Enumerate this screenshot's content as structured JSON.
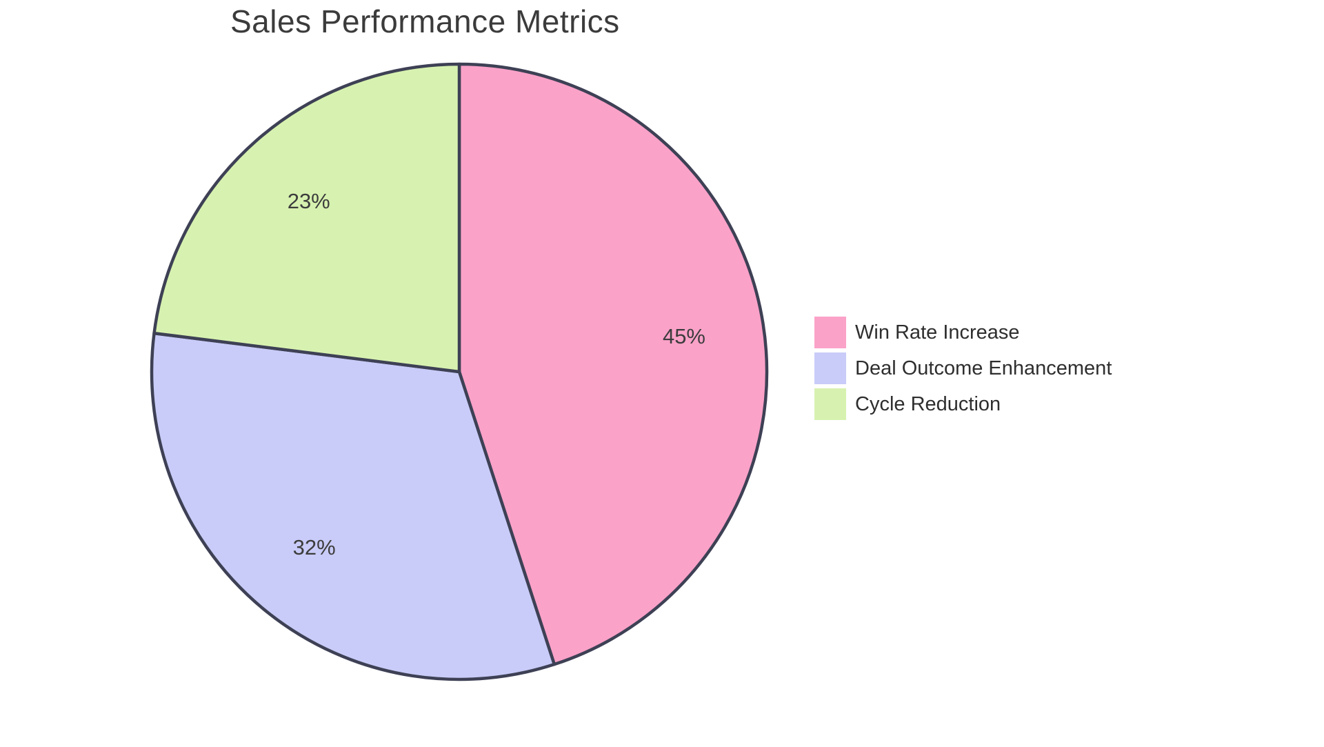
{
  "page": {
    "background": "#FFFFFF"
  },
  "chart_data": {
    "type": "pie",
    "title": "Sales Performance Metrics",
    "categories": [
      "Win Rate Increase",
      "Deal Outcome Enhancement",
      "Cycle Reduction"
    ],
    "values": [
      45,
      32,
      23
    ],
    "slices": [
      {
        "label": "Win Rate Increase",
        "value": 45,
        "display": "45%",
        "color": "#FBA2C9"
      },
      {
        "label": "Deal Outcome Enhancement",
        "value": 32,
        "display": "32%",
        "color": "#C9CCF8"
      },
      {
        "label": "Cycle Reduction",
        "value": 23,
        "display": "23%",
        "color": "#D7F2B0"
      }
    ],
    "start_angle_deg": -90,
    "direction": "clockwise",
    "legend_position": "right",
    "label_radius_fraction": 0.74,
    "border_color": "#3E4155",
    "label_color": "#3C3C3C",
    "title_color": "#3B3B3B",
    "legend_text_color": "#2E2E2E"
  }
}
